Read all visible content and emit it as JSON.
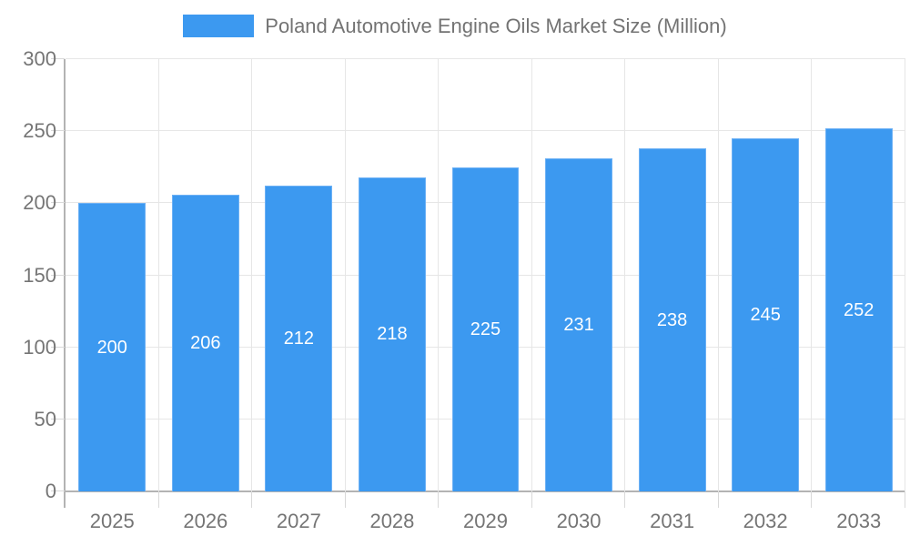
{
  "chart_data": {
    "type": "bar",
    "title": "Poland Automotive Engine Oils Market Size (Million)",
    "legend_position": "top",
    "categories": [
      "2025",
      "2026",
      "2027",
      "2028",
      "2029",
      "2030",
      "2031",
      "2032",
      "2033"
    ],
    "series": [
      {
        "name": "Poland Automotive Engine Oils Market Size (Million)",
        "values": [
          200,
          206,
          212,
          218,
          225,
          231,
          238,
          245,
          252
        ]
      }
    ],
    "xlabel": "",
    "ylabel": "",
    "ylim": [
      0,
      300
    ],
    "yticks": [
      0,
      50,
      100,
      150,
      200,
      250,
      300
    ],
    "grid": true,
    "data_labels_shown": true,
    "colors": {
      "bar": "#3c99f0",
      "bar_border": "#6db1f5",
      "bar_value_label": "#ffffff",
      "axis_text": "#757575",
      "legend_text": "#737373",
      "gridline": "#e6e6e6",
      "axis_line": "#b3b3b3",
      "tick_mark": "#d9d9d9",
      "background": "#ffffff"
    }
  }
}
